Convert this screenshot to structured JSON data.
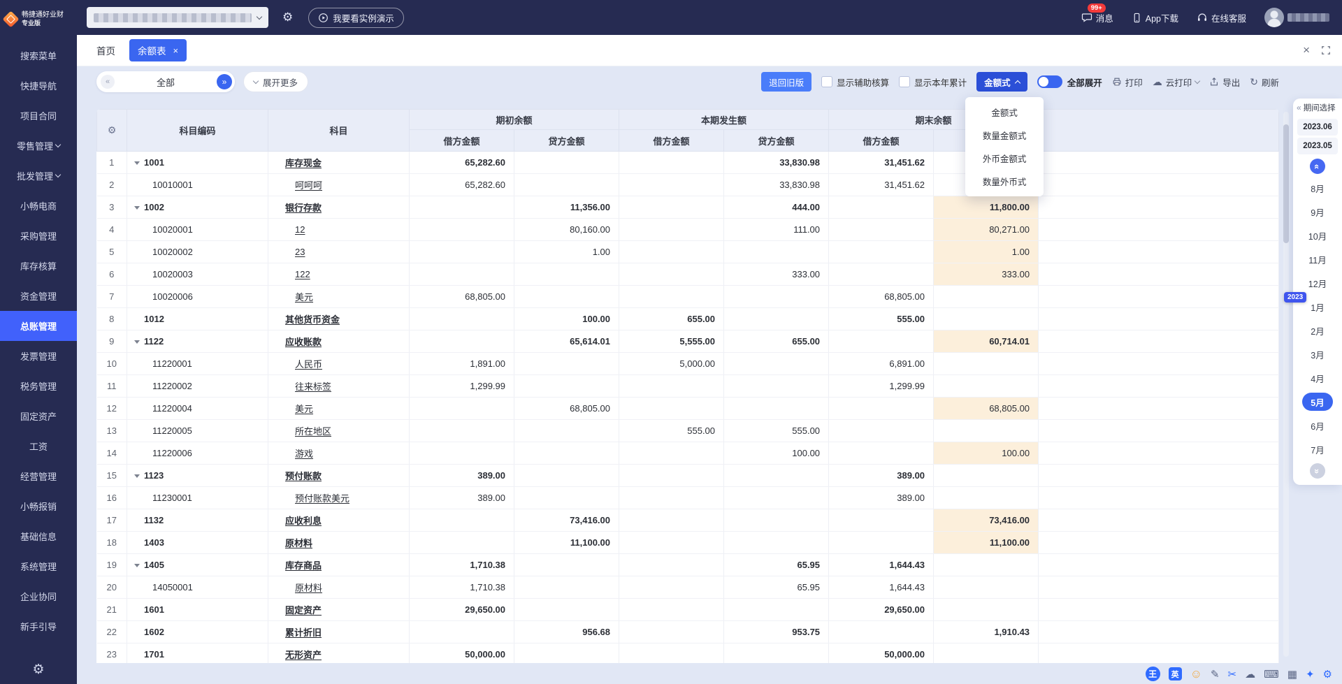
{
  "icons": {
    "gear": "⚙",
    "cloud": "☁",
    "refresh": "↻",
    "close": "×",
    "guillemet_left": "«",
    "guillemet_right": "»",
    "smiley": "☺",
    "pen": "✎",
    "scissors": "✂",
    "keyboard": "⌨",
    "grid": "▦",
    "star": "✦"
  },
  "brand": {
    "name": "畅捷通好业财",
    "edition": "专业版"
  },
  "topbar": {
    "demo_label": "我要看实例演示",
    "messages_label": "消息",
    "messages_badge": "99+",
    "app_download_label": "App下载",
    "support_label": "在线客服"
  },
  "sidebar": {
    "items": [
      {
        "label": "搜索菜单"
      },
      {
        "label": "快捷导航"
      },
      {
        "label": "项目合同"
      },
      {
        "label": "零售管理",
        "caret": true
      },
      {
        "label": "批发管理",
        "caret": true
      },
      {
        "label": "小畅电商"
      },
      {
        "label": "采购管理"
      },
      {
        "label": "库存核算"
      },
      {
        "label": "资金管理"
      },
      {
        "label": "总账管理",
        "active": true
      },
      {
        "label": "发票管理"
      },
      {
        "label": "税务管理"
      },
      {
        "label": "固定资产"
      },
      {
        "label": "工资"
      },
      {
        "label": "经营管理"
      },
      {
        "label": "小畅报销"
      },
      {
        "label": "基础信息"
      },
      {
        "label": "系统管理"
      },
      {
        "label": "企业协同"
      },
      {
        "label": "新手引导"
      }
    ]
  },
  "tabs": {
    "home": "首页",
    "active": "余额表"
  },
  "toolbar": {
    "filter_value": "全部",
    "expand_more": "展开更多",
    "back_to_old": "退回旧版",
    "show_aux": "显示辅助核算",
    "show_ytd": "显示本年累计",
    "format_button": "金额式",
    "expand_all": "全部展开",
    "print": "打印",
    "cloud_print": "云打印",
    "export": "导出",
    "refresh": "刷新"
  },
  "format_menu": {
    "items": [
      "金额式",
      "数量金额式",
      "外币金额式",
      "数量外币式"
    ]
  },
  "period_panel": {
    "tab": "期间选择",
    "recent": [
      "2023.06",
      "2023.05"
    ],
    "year_badge": "2023",
    "months": [
      "8月",
      "9月",
      "10月",
      "11月",
      "12月",
      "1月",
      "2月",
      "3月",
      "4月",
      "5月",
      "6月",
      "7月"
    ],
    "selected": "5月"
  },
  "table": {
    "col_code": "科目编码",
    "col_name": "科目",
    "groups": [
      "期初余额",
      "本期发生额",
      "期末余额"
    ],
    "sub": [
      "借方金额",
      "贷方金额",
      "借方金额",
      "贷方金额",
      "借方金额",
      "贷方金额"
    ],
    "rows": [
      {
        "num": 1,
        "code": "1001",
        "name": "库存现金",
        "exp": true,
        "bold": true,
        "od": "65,282.60",
        "cc": "33,830.98",
        "ed": "31,451.62"
      },
      {
        "num": 2,
        "code": "10010001",
        "name": "呵呵呵",
        "child": true,
        "od": "65,282.60",
        "cc": "33,830.98",
        "ed": "31,451.62"
      },
      {
        "num": 3,
        "code": "1002",
        "name": "银行存款",
        "exp": true,
        "bold": true,
        "oc": "11,356.00",
        "cc": "444.00",
        "ec": "11,800.00",
        "hl": true
      },
      {
        "num": 4,
        "code": "10020001",
        "name": "12",
        "child": true,
        "oc": "80,160.00",
        "cc": "111.00",
        "ec": "80,271.00",
        "hl": true
      },
      {
        "num": 5,
        "code": "10020002",
        "name": "23",
        "child": true,
        "oc": "1.00",
        "ec": "1.00",
        "hl": true
      },
      {
        "num": 6,
        "code": "10020003",
        "name": "122",
        "child": true,
        "cc": "333.00",
        "ec": "333.00",
        "hl": true
      },
      {
        "num": 7,
        "code": "10020006",
        "name": "美元",
        "child": true,
        "od": "68,805.00",
        "ed": "68,805.00"
      },
      {
        "num": 8,
        "code": "1012",
        "name": "其他货币资金",
        "bold": true,
        "oc": "100.00",
        "cd": "655.00",
        "ed": "555.00"
      },
      {
        "num": 9,
        "code": "1122",
        "name": "应收账款",
        "exp": true,
        "bold": true,
        "oc": "65,614.01",
        "cd": "5,555.00",
        "cc": "655.00",
        "ec": "60,714.01",
        "hl": true
      },
      {
        "num": 10,
        "code": "11220001",
        "name": "人民币",
        "child": true,
        "od": "1,891.00",
        "cd": "5,000.00",
        "ed": "6,891.00"
      },
      {
        "num": 11,
        "code": "11220002",
        "name": "往来标签",
        "child": true,
        "od": "1,299.99",
        "ed": "1,299.99"
      },
      {
        "num": 12,
        "code": "11220004",
        "name": "美元",
        "child": true,
        "oc": "68,805.00",
        "ec": "68,805.00",
        "hl": true
      },
      {
        "num": 13,
        "code": "11220005",
        "name": "所在地区",
        "child": true,
        "cd": "555.00",
        "cc": "555.00"
      },
      {
        "num": 14,
        "code": "11220006",
        "name": "游戏",
        "child": true,
        "cc": "100.00",
        "ec": "100.00",
        "hl": true
      },
      {
        "num": 15,
        "code": "1123",
        "name": "预付账款",
        "exp": true,
        "bold": true,
        "od": "389.00",
        "ed": "389.00"
      },
      {
        "num": 16,
        "code": "11230001",
        "name": "预付账款美元",
        "child": true,
        "od": "389.00",
        "ed": "389.00"
      },
      {
        "num": 17,
        "code": "1132",
        "name": "应收利息",
        "bold": true,
        "oc": "73,416.00",
        "ec": "73,416.00",
        "hl": true
      },
      {
        "num": 18,
        "code": "1403",
        "name": "原材料",
        "bold": true,
        "oc": "11,100.00",
        "ec": "11,100.00",
        "hl": true
      },
      {
        "num": 19,
        "code": "1405",
        "name": "库存商品",
        "exp": true,
        "bold": true,
        "od": "1,710.38",
        "cc": "65.95",
        "ed": "1,644.43"
      },
      {
        "num": 20,
        "code": "14050001",
        "name": "原材料",
        "child": true,
        "od": "1,710.38",
        "cc": "65.95",
        "ed": "1,644.43"
      },
      {
        "num": 21,
        "code": "1601",
        "name": "固定资产",
        "bold": true,
        "od": "29,650.00",
        "ed": "29,650.00"
      },
      {
        "num": 22,
        "code": "1602",
        "name": "累计折旧",
        "bold": true,
        "oc": "956.68",
        "cc": "953.75",
        "ec": "1,910.43"
      },
      {
        "num": 23,
        "code": "1701",
        "name": "无形资产",
        "bold": true,
        "od": "50,000.00",
        "ed": "50,000.00"
      }
    ]
  },
  "taskbar": {
    "ime_cn": "王",
    "ime_en": "英"
  }
}
